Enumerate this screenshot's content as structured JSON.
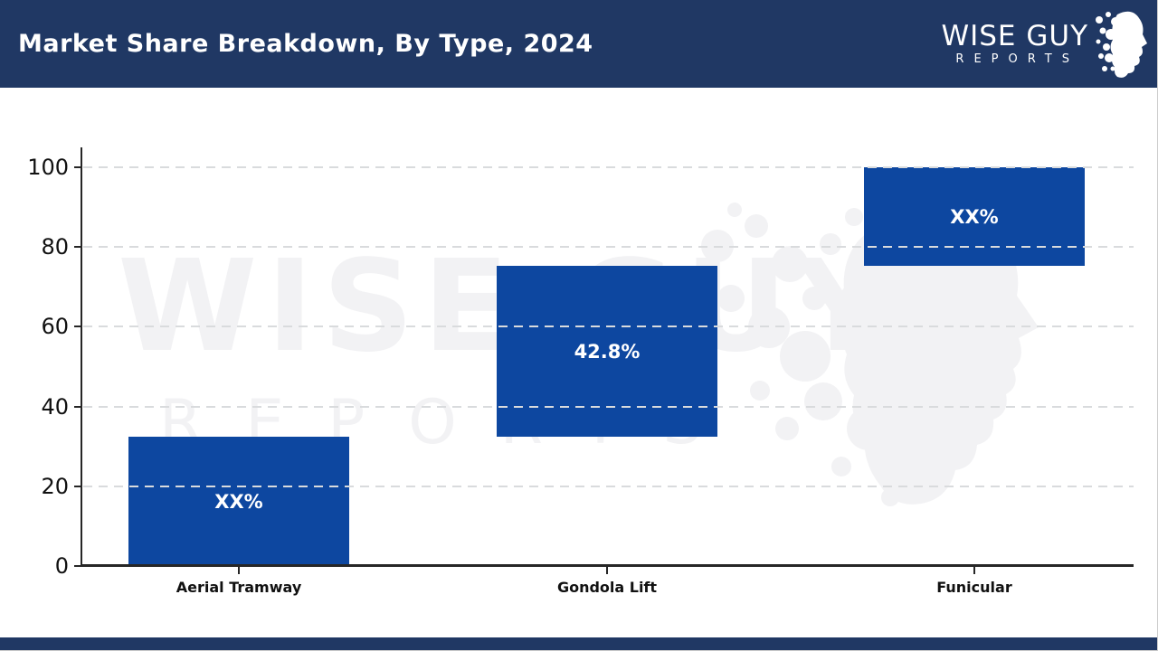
{
  "header": {
    "title": "Market Share Breakdown, By Type, 2024",
    "logo": {
      "line1": "WISE GUY",
      "line2": "REPORTS"
    }
  },
  "watermark": {
    "line1": "WISE GUY",
    "line2": "REPORTS"
  },
  "footer": {},
  "theme": {
    "header_bg": "#203864",
    "bar_color": "#0d47a0",
    "grid_color": "#d9dbdd",
    "axis_color": "#262626",
    "watermark_color": "#f2f2f4",
    "bar_label_color": "#ffffff"
  },
  "chart_data": {
    "type": "bar",
    "subtype": "floating-stacked-percentage",
    "title": "Market Share Breakdown, By Type, 2024",
    "categories": [
      "Aerial Tramway",
      "Gondola Lift",
      "Funicular"
    ],
    "segments": [
      {
        "category": "Aerial Tramway",
        "start": 0,
        "end": 32.4,
        "label": "XX%"
      },
      {
        "category": "Gondola Lift",
        "start": 32.4,
        "end": 75.2,
        "label": "42.8%"
      },
      {
        "category": "Funicular",
        "start": 75.2,
        "end": 100,
        "label": "XX%"
      }
    ],
    "xlabel": "",
    "ylabel": "",
    "ylim": [
      0,
      100
    ],
    "yticks": [
      0,
      20,
      40,
      60,
      80,
      100
    ],
    "grid": true,
    "grid_style": "dashed",
    "legend": "none",
    "bar_color": "#0d47a0"
  }
}
